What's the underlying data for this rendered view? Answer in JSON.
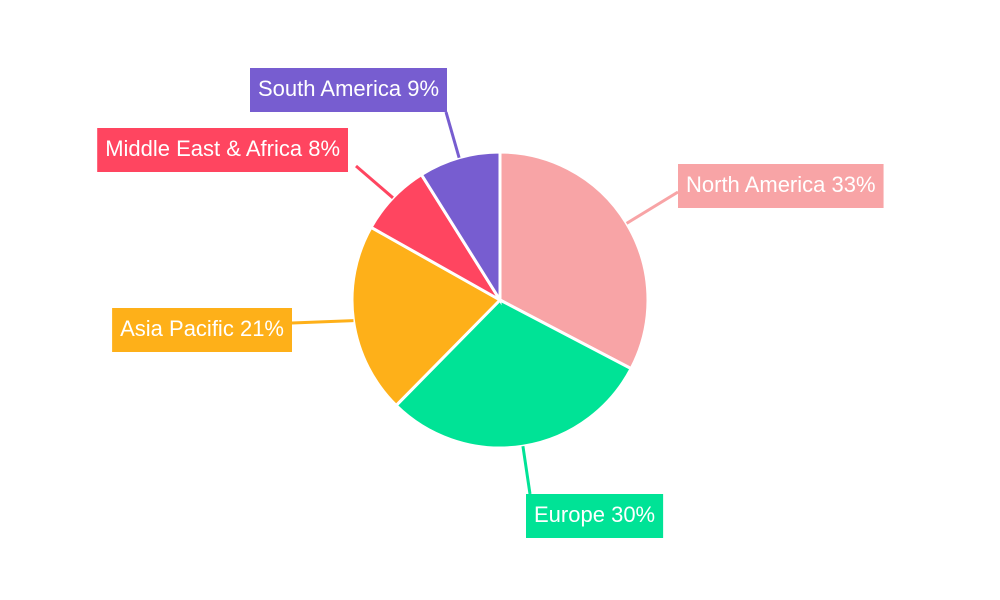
{
  "chart_data": {
    "type": "pie",
    "categories": [
      "North America",
      "Europe",
      "Asia Pacific",
      "Middle East & Africa",
      "South America"
    ],
    "values": [
      33,
      30,
      21,
      8,
      9
    ],
    "value_labels": [
      "33%",
      "30%",
      "21%",
      "8%",
      "9%"
    ],
    "colors": [
      "#f8a4a6",
      "#00e396",
      "#feb019",
      "#ff4560",
      "#775dd0"
    ]
  }
}
